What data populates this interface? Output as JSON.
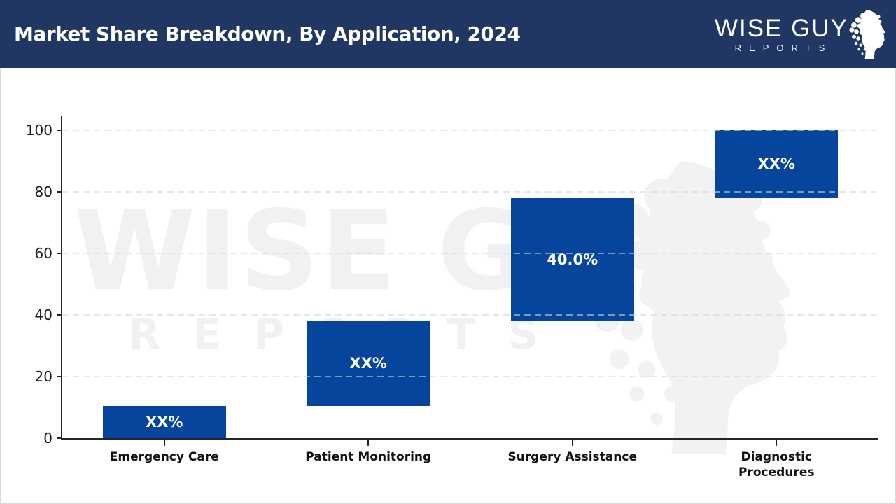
{
  "header": {
    "title": "Market Share Breakdown, By Application, 2024",
    "logo": {
      "brand": "WISE GUY",
      "subtitle": "REPORTS"
    }
  },
  "watermark": {
    "brand": "WISE GUY",
    "subtitle": "REPORTS"
  },
  "colors": {
    "header_bg": "#213763",
    "bar": "#05459c",
    "bar_label": "#ffffff",
    "axis": "#262626",
    "gridline": "#d6d6d6",
    "title_text": "#ffffff",
    "watermark": "#f1f1f3"
  },
  "chart_data": {
    "type": "bar",
    "subtype": "floating-segment-waterfall",
    "title": "Market Share Breakdown, By Application, 2024",
    "categories": [
      "Emergency Care",
      "Patient Monitoring",
      "Surgery Assistance",
      "Diagnostic\nProcedures"
    ],
    "segments": [
      {
        "category": "Emergency Care",
        "start": 0,
        "end": 10.5,
        "label": "XX%"
      },
      {
        "category": "Patient Monitoring",
        "start": 10.5,
        "end": 38,
        "label": "XX%"
      },
      {
        "category": "Surgery Assistance",
        "start": 38,
        "end": 78,
        "label": "40.0%"
      },
      {
        "category": "Diagnostic Procedures",
        "start": 78,
        "end": 100,
        "label": "XX%"
      }
    ],
    "xlabel": "",
    "ylabel": "",
    "ylim": [
      0,
      100
    ],
    "yticks": [
      0,
      20,
      40,
      60,
      80,
      100
    ],
    "grid": "horizontal-dashed",
    "legend": "none",
    "bar_value_unit": "%"
  }
}
